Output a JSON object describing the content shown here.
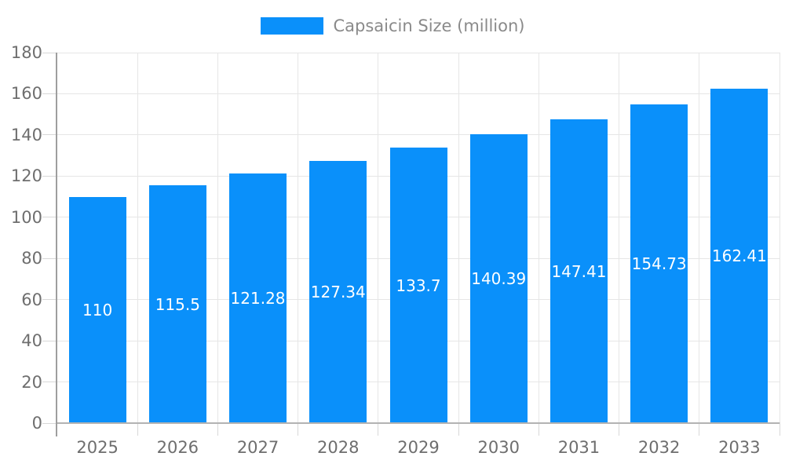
{
  "legend": {
    "label": "Capsaicin Size (million)"
  },
  "chart_data": {
    "type": "bar",
    "title": "",
    "xlabel": "",
    "ylabel": "",
    "categories": [
      "2025",
      "2026",
      "2027",
      "2028",
      "2029",
      "2030",
      "2031",
      "2032",
      "2033"
    ],
    "series": [
      {
        "name": "Capsaicin Size (million)",
        "values": [
          110,
          115.5,
          121.28,
          127.34,
          133.7,
          140.39,
          147.41,
          154.73,
          162.41
        ],
        "labels": [
          "110",
          "115.5",
          "121.28",
          "127.34",
          "133.7",
          "140.39",
          "147.41",
          "154.73",
          "162.41"
        ]
      }
    ],
    "ylim": [
      0,
      180
    ],
    "ytick_step": 20,
    "ytick_labels": [
      "0",
      "20",
      "40",
      "60",
      "80",
      "100",
      "120",
      "140",
      "160",
      "180"
    ],
    "grid": "on",
    "legend_position": "top-center",
    "value_label_position": "inside-center",
    "colors": {
      "bar": "#0a90fa",
      "value_label": "#ffffff",
      "axis_label": "#6e6e6e",
      "legend_label": "#8a8a8a",
      "gridline": "#e6e6e6",
      "axis_line": "#9e9e9e",
      "baseline": "#b3b3b3",
      "tick": "#d8d8d8",
      "background": "#ffffff"
    }
  }
}
